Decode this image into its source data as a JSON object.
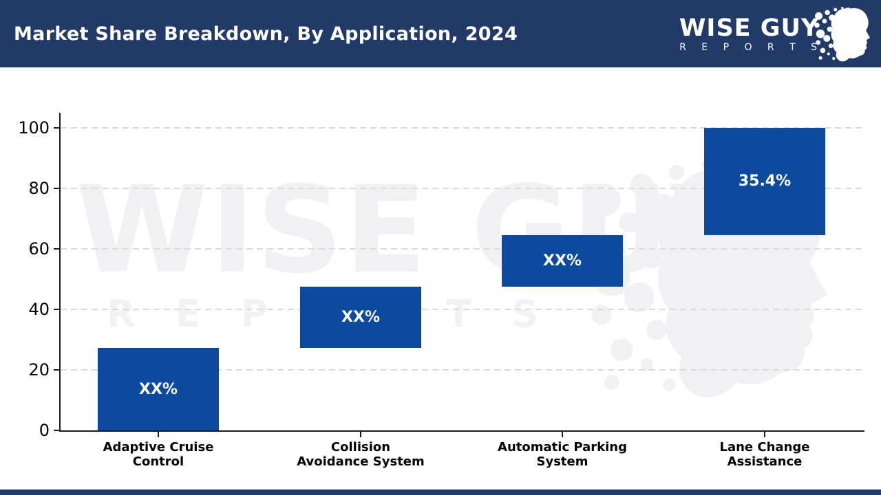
{
  "header": {
    "title": "Market Share Breakdown, By Application, 2024",
    "logo": {
      "line1": "WISE GUY",
      "line2": "R E P O R T S"
    }
  },
  "watermark": {
    "line1": "WISE GUY",
    "line2": "REPORTS"
  },
  "chart_data": {
    "type": "bar",
    "subtype": "waterfall",
    "title": "Market Share Breakdown, By Application, 2024",
    "categories": [
      "Adaptive Cruise Control",
      "Collision Avoidance System",
      "Automatic Parking System",
      "Lane Change Assistance"
    ],
    "category_lines": [
      [
        "Adaptive Cruise",
        "Control"
      ],
      [
        "Collision",
        "Avoidance System"
      ],
      [
        "Automatic Parking",
        "System"
      ],
      [
        "Lane Change",
        "Assistance"
      ]
    ],
    "segments": [
      {
        "category": "Adaptive Cruise Control",
        "start": 0,
        "end": 27.2,
        "value": 27.2,
        "label": "XX%"
      },
      {
        "category": "Collision Avoidance System",
        "start": 27.2,
        "end": 47.6,
        "value": 20.4,
        "label": "XX%"
      },
      {
        "category": "Automatic Parking System",
        "start": 47.6,
        "end": 64.6,
        "value": 17.0,
        "label": "XX%"
      },
      {
        "category": "Lane Change Assistance",
        "start": 64.6,
        "end": 100,
        "value": 35.4,
        "label": "35.4%"
      }
    ],
    "ylim": [
      0,
      100
    ],
    "yticks": [
      0,
      20,
      40,
      60,
      80,
      100
    ],
    "ytick_labels": [
      "0",
      "20",
      "40",
      "60",
      "80",
      "100"
    ],
    "xlabel": "",
    "ylabel": "",
    "grid": "horizontal-dashed",
    "legend": "none"
  },
  "colors": {
    "header_bg": "#213a67",
    "footer_bg": "#213a67",
    "bar": "#0c4a9e",
    "bar_label": "#ffffff",
    "gridline": "#dbdbdb",
    "axis": "#1c1c1c",
    "watermark": "#f1f1f4"
  }
}
